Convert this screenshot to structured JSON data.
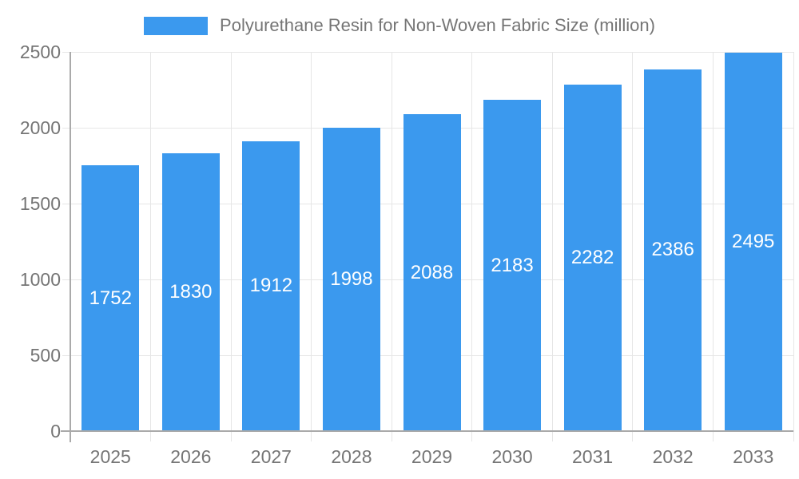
{
  "chart_data": {
    "type": "bar",
    "title": "Polyurethane Resin for Non-Woven Fabric Size (million)",
    "categories": [
      "2025",
      "2026",
      "2027",
      "2028",
      "2029",
      "2030",
      "2031",
      "2032",
      "2033"
    ],
    "values": [
      1752,
      1830,
      1912,
      1998,
      2088,
      2183,
      2282,
      2386,
      2495
    ],
    "xlabel": "",
    "ylabel": "",
    "ylim": [
      0,
      2500
    ],
    "yticks": [
      0,
      500,
      1000,
      1500,
      2000,
      2500
    ],
    "grid": true,
    "legend_position": "top",
    "bar_labels_visible": true,
    "colors": {
      "bar": "#3B99EE",
      "grid": "#E6E6E6",
      "axis": "#AAAAAA",
      "tick_text": "#757575",
      "bar_label_text": "#FFFFFF",
      "background": "#FFFFFF"
    }
  }
}
